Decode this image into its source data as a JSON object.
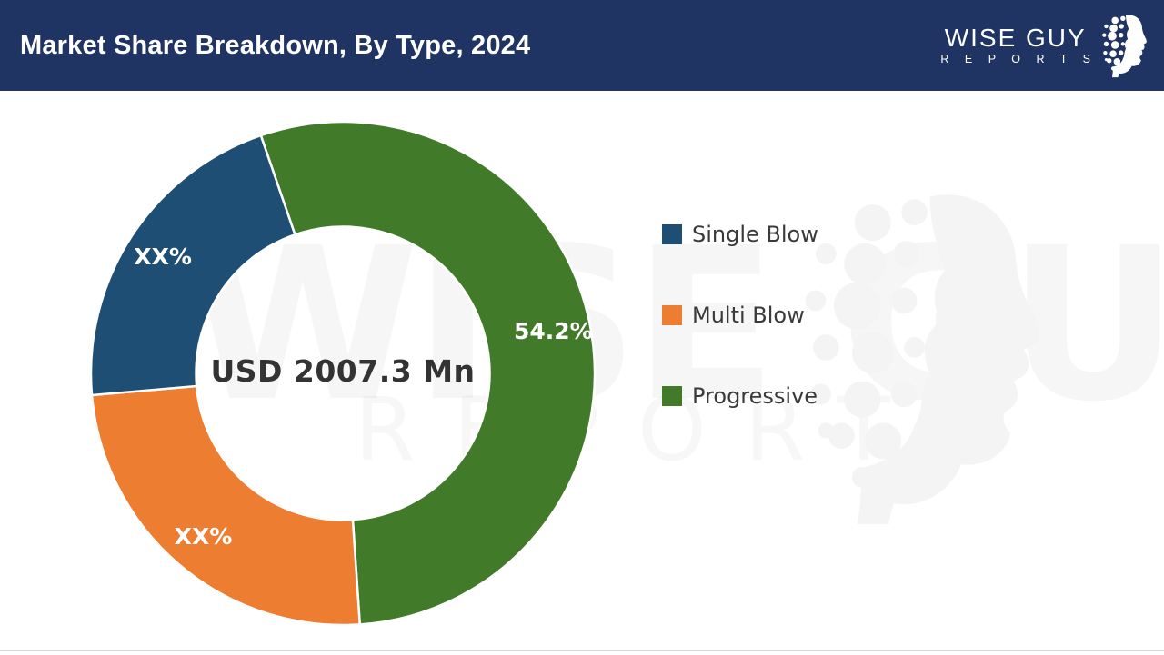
{
  "header": {
    "title": "Market Share Breakdown, By Type, 2024",
    "bg_color": "#1F3462",
    "logo_line1": "WISE GUY",
    "logo_line2": "R E P O R T S"
  },
  "watermark": {
    "text_line1": "WISE GUY",
    "text_line2": "REPORTS"
  },
  "chart_data": {
    "type": "pie",
    "subtype": "donut",
    "title": "Market Share Breakdown, By Type, 2024",
    "center_label": "USD 2007.3 Mn",
    "start_angle_deg_cw_from_top": -19,
    "inner_radius_ratio": 0.583,
    "label_radius_ratio": 0.852,
    "segments": [
      {
        "name": "Progressive",
        "value_pct": 54.2,
        "display_label": "54.2%",
        "color": "#417A28"
      },
      {
        "name": "Multi Blow",
        "value_pct": 24.7,
        "display_label": "XX%",
        "color": "#ED7D31"
      },
      {
        "name": "Single Blow",
        "value_pct": 21.1,
        "display_label": "XX%",
        "color": "#1F4E74"
      }
    ],
    "legend_position": "right",
    "grid": false
  },
  "legend": {
    "items": [
      {
        "label": "Single Blow",
        "color": "#1F4E74"
      },
      {
        "label": "Multi Blow",
        "color": "#ED7D31"
      },
      {
        "label": "Progressive",
        "color": "#417A28"
      }
    ]
  }
}
